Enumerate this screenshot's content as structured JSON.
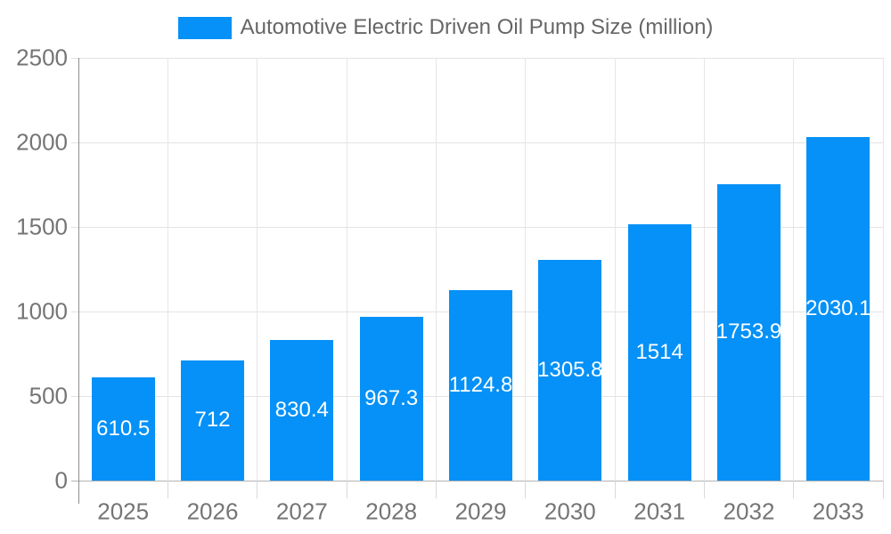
{
  "legend": {
    "label": "Automotive Electric Driven Oil Pump Size (million)"
  },
  "chart_data": {
    "type": "bar",
    "title": "Automotive Electric Driven Oil Pump Size (million)",
    "categories": [
      "2025",
      "2026",
      "2027",
      "2028",
      "2029",
      "2030",
      "2031",
      "2032",
      "2033"
    ],
    "series": [
      {
        "name": "Automotive Electric Driven Oil Pump Size (million)",
        "values": [
          610.5,
          712,
          830.4,
          967.3,
          1124.8,
          1305.8,
          1514,
          1753.9,
          2030.1
        ]
      }
    ],
    "value_labels": [
      "610.5",
      "712",
      "830.4",
      "967.3",
      "1124.8",
      "1305.8",
      "1514",
      "1753.9",
      "2030.1"
    ],
    "yticks": [
      0,
      500,
      1000,
      1500,
      2000,
      2500
    ],
    "ytick_labels": [
      "0",
      "500",
      "1000",
      "1500",
      "2000",
      "2500"
    ],
    "ylim": [
      0,
      2500
    ],
    "xlabel": "",
    "ylabel": "",
    "grid": true,
    "legend_position": "top-center",
    "value_label_position": "inside-center",
    "colors": {
      "bar": "#0591f7",
      "grid": "#e6e6e6",
      "baseline": "#b3b3b3",
      "y_axis": "#8f8f8f",
      "tick_label": "#757575",
      "title": "#666666",
      "value_label": "#ffffff",
      "background": "#ffffff"
    }
  }
}
